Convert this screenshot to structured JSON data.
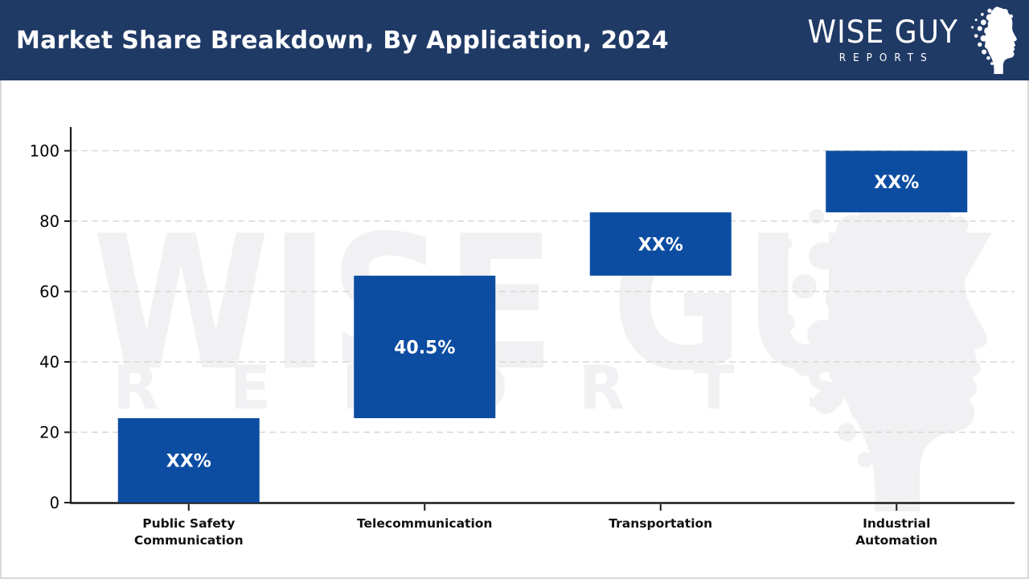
{
  "page": {
    "background": "#ffffff",
    "frame_border_color": "#d9d9d9"
  },
  "header": {
    "background": "#203a66",
    "title": "Market Share Breakdown, By Application, 2024",
    "logo": {
      "line1": "WISE GUY",
      "line2": "REPORTS"
    }
  },
  "watermark": {
    "line1": "WISE GUY",
    "line2": "REPORTS",
    "color": "#f1f1f3"
  },
  "chart_data": {
    "type": "bar",
    "variant": "floating-waterfall",
    "title": "Market Share Breakdown, By Application, 2024",
    "categories": [
      "Public Safety\nCommunication",
      "Telecommunication",
      "Transportation",
      "Industrial\nAutomation"
    ],
    "segments": [
      {
        "category": "Public Safety Communication",
        "start": 0,
        "end": 24,
        "label": "XX%"
      },
      {
        "category": "Telecommunication",
        "start": 24,
        "end": 64.5,
        "label": "40.5%",
        "value": 40.5
      },
      {
        "category": "Transportation",
        "start": 64.5,
        "end": 82.5,
        "label": "XX%"
      },
      {
        "category": "Industrial Automation",
        "start": 82.5,
        "end": 100,
        "label": "XX%"
      }
    ],
    "xlabel": "",
    "ylabel": "",
    "ylim": [
      0,
      100
    ],
    "yticks": [
      0,
      20,
      40,
      60,
      80,
      100
    ],
    "grid": "horizontal-dashed",
    "legend": "none",
    "bar_color": "#0c4da2",
    "bar_label_color": "#ffffff",
    "axis_color": "#1a1a1a",
    "tick_label_color": "#000000",
    "gridline_color": "#d8d8d8"
  }
}
